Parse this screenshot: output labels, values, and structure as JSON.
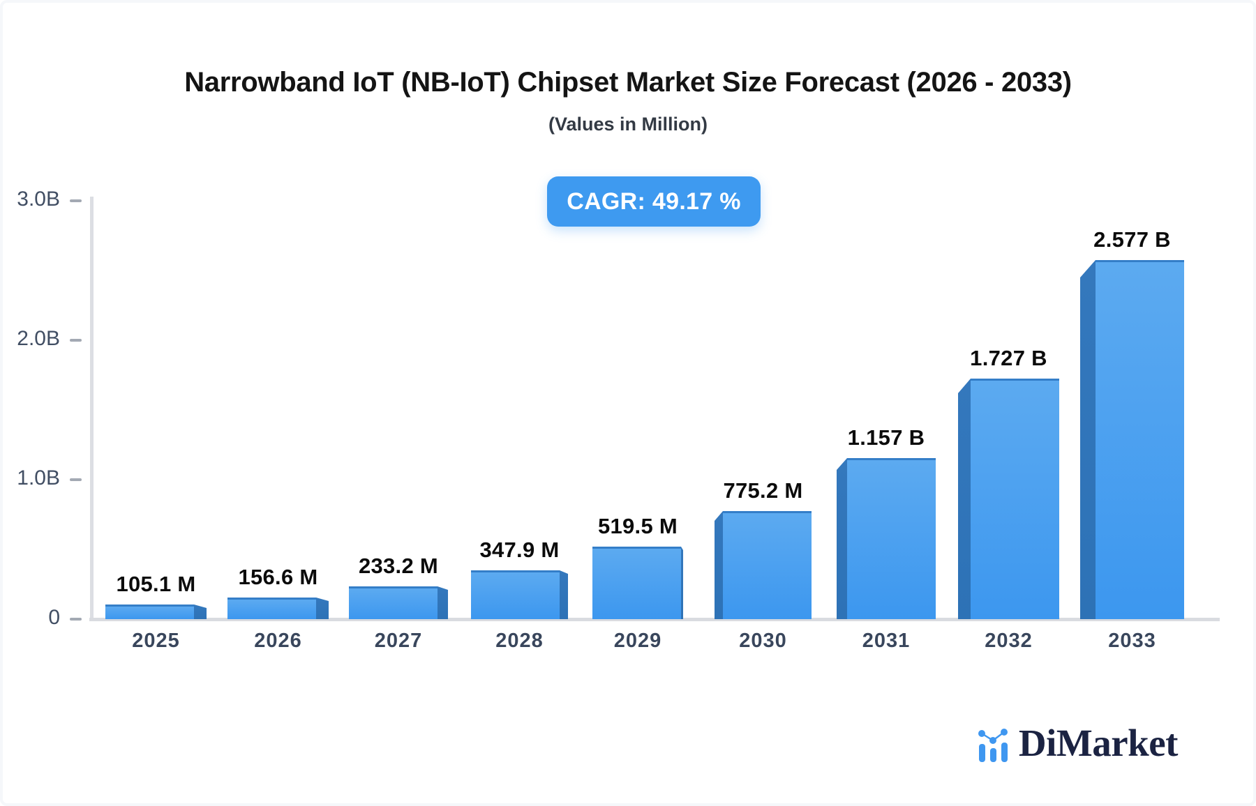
{
  "header": {
    "title": "Narrowband IoT (NB-IoT) Chipset Market Size Forecast (2026 - 2033)",
    "subtitle": "(Values in Million)"
  },
  "badge": {
    "label": "CAGR: 49.17 %"
  },
  "chart_data": {
    "type": "bar",
    "title": "Narrowband IoT (NB-IoT) Chipset Market Size Forecast (2026 - 2033)",
    "units_note": "Values in Million",
    "cagr_percent": 49.17,
    "categories": [
      "2025",
      "2026",
      "2027",
      "2028",
      "2029",
      "2030",
      "2031",
      "2032",
      "2033"
    ],
    "values_millions": [
      105.1,
      156.6,
      233.2,
      347.9,
      519.5,
      775.2,
      1157,
      1727,
      2577
    ],
    "value_labels": [
      "105.1 M",
      "156.6 M",
      "233.2 M",
      "347.9 M",
      "519.5 M",
      "775.2 M",
      "1.157 B",
      "1.727 B",
      "2.577 B"
    ],
    "xlabel": "",
    "ylabel": "",
    "ylim_millions": [
      0,
      3000
    ],
    "y_ticks": [
      {
        "label": "0",
        "value_millions": 0
      },
      {
        "label": "1.0B",
        "value_millions": 1000
      },
      {
        "label": "2.0B",
        "value_millions": 2000
      },
      {
        "label": "3.0B",
        "value_millions": 3000
      }
    ],
    "grid": false,
    "legend": "none",
    "bar_face_color_top": "#5caaf0",
    "bar_face_color_bottom": "#3c97ef",
    "bar_side_color": "#2e74b8",
    "badge_color": "#3e9af0"
  },
  "logo": {
    "text": "DiMarket",
    "icon": "mini-bar-chart-icon",
    "color": "#3f97f0"
  }
}
